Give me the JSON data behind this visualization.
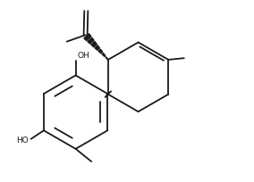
{
  "background": "#ffffff",
  "line_color": "#1a1a1a",
  "lw": 1.3,
  "fig_w": 2.84,
  "fig_h": 2.04,
  "dpi": 100
}
